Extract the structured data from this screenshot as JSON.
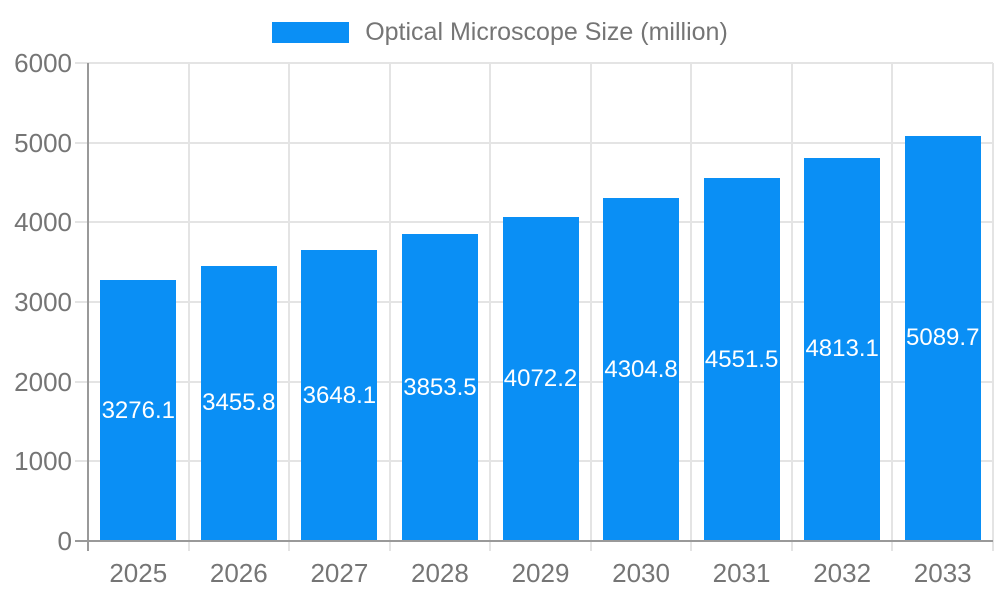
{
  "legend": {
    "label": "Optical Microscope Size (million)"
  },
  "chart_data": {
    "type": "bar",
    "title": "Optical Microscope Size (million)",
    "categories": [
      "2025",
      "2026",
      "2027",
      "2028",
      "2029",
      "2030",
      "2031",
      "2032",
      "2033"
    ],
    "values": [
      3276.1,
      3455.8,
      3648.1,
      3853.5,
      4072.2,
      4304.8,
      4551.5,
      4813.1,
      5089.7
    ],
    "bar_labels": [
      "3276.1",
      "3455.8",
      "3648.1",
      "3853.5",
      "4072.2",
      "4304.8",
      "4551.5",
      "4813.1",
      "5089.7"
    ],
    "xlabel": "",
    "ylabel": "",
    "ylim": [
      0,
      6000
    ],
    "yticks": [
      0,
      1000,
      2000,
      3000,
      4000,
      5000,
      6000
    ],
    "grid": true,
    "legend_position": "top"
  },
  "colors": {
    "bar": "#0a8ff5",
    "grid": "#e4e4e4",
    "axis": "#999999",
    "text": "#757575",
    "bar_label": "#ffffff",
    "background": "#ffffff"
  }
}
